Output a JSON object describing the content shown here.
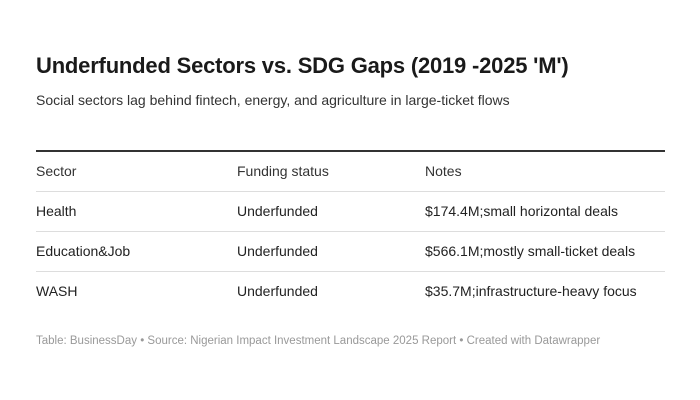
{
  "header": {
    "title": "Underfunded Sectors vs. SDG Gaps (2019 -2025 'M')",
    "subtitle": "Social sectors lag behind fintech, energy, and agriculture in large-ticket flows"
  },
  "chart_data": {
    "type": "table",
    "title": "Underfunded Sectors vs. SDG Gaps (2019 -2025 'M')",
    "subtitle": "Social sectors lag behind fintech, energy, and agriculture in large-ticket flows",
    "columns": [
      "Sector",
      "Funding status",
      "Notes"
    ],
    "rows": [
      {
        "cells": [
          "Health",
          "Underfunded",
          "$174.4M;small horizontal deals"
        ]
      },
      {
        "cells": [
          "Education&Job",
          "Underfunded",
          "$566.1M;mostly small-ticket deals"
        ]
      },
      {
        "cells": [
          "WASH",
          "Underfunded",
          "$35.7M;infrastructure-heavy focus"
        ]
      }
    ],
    "funding_amounts_musd": {
      "Health": 174.4,
      "Education&Job": 566.1,
      "WASH": 35.7
    },
    "layout_hints": {
      "grid": "horizontal-row-separators",
      "header_border_top": true,
      "legend": "none"
    }
  },
  "footer": {
    "text": "Table: BusinessDay • Source: Nigerian Impact Investment Landscape 2025 Report • Created with Datawrapper"
  },
  "colors": {
    "background": "#ffffff",
    "title_text": "#1a1a1a",
    "body_text": "#333333",
    "header_rule": "#333333",
    "row_separator": "#dddddd",
    "footer_text": "#999999"
  }
}
